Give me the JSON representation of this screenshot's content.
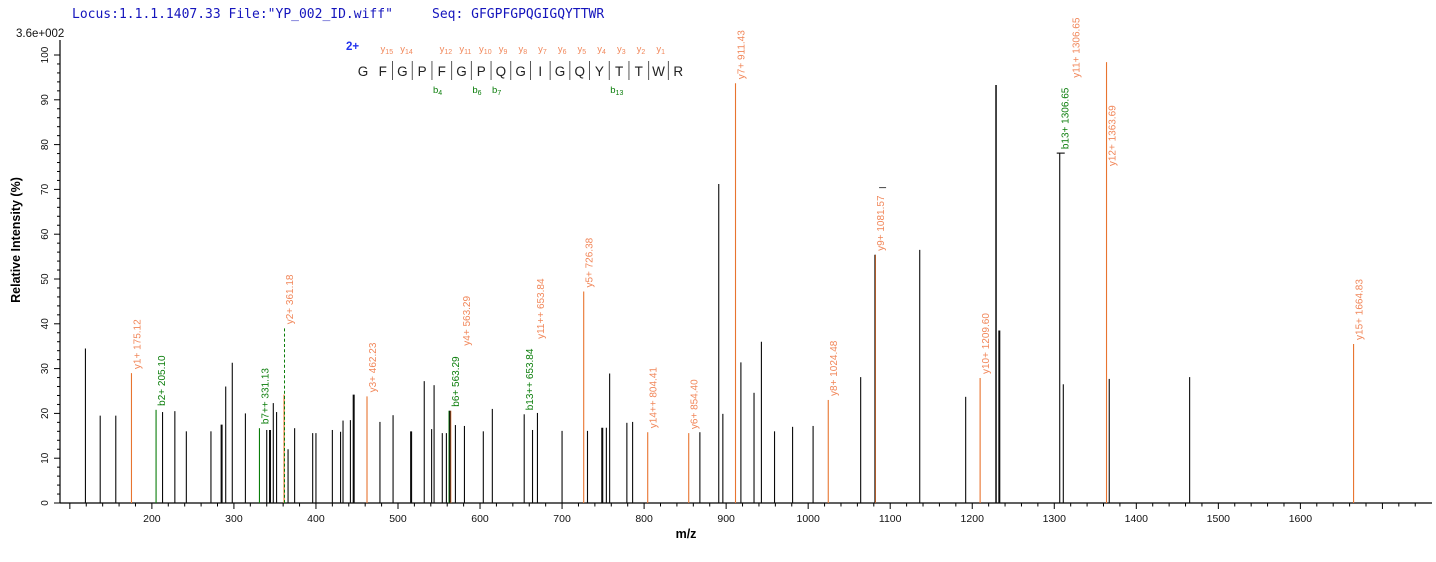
{
  "header": {
    "locus_file": "Locus:1.1.1.1407.33 File:\"YP_002_ID.wiff\"",
    "seq_label": "Seq: GFGPFGPQGIGQYTTWR",
    "max_intensity": "3.6e+002"
  },
  "colors": {
    "y_ion_line": "#e8742f",
    "y_ion_label": "#f1875a",
    "b_ion_line": "#0a7d0a",
    "b_ion_label": "#0a7d0a",
    "peak_black": "#0a0a0a",
    "header_blue": "#1515bd"
  },
  "chart_data": {
    "type": "bar",
    "subtype": "ms2-stick-spectrum",
    "title": "",
    "xlabel": "m/z",
    "ylabel": "Relative  Intensity (%)",
    "x_range": [
      88,
      1758
    ],
    "x_tick_labels": [
      200,
      300,
      400,
      500,
      600,
      700,
      800,
      900,
      1000,
      1100,
      1200,
      1300,
      1400,
      1500,
      1600
    ],
    "x_minor_step": 20,
    "y_range": [
      0,
      100
    ],
    "y_tick_labels": [
      0,
      10,
      20,
      30,
      40,
      50,
      60,
      70,
      80,
      90,
      100
    ],
    "y_minor_step": 2,
    "grid": false,
    "precursor_charge": "2+",
    "peptide": "GFGPFGPQGIGQYTTWR",
    "sequence": [
      "G",
      "F",
      "G",
      "P",
      "F",
      "G",
      "P",
      "Q",
      "G",
      "I",
      "G",
      "Q",
      "Y",
      "T",
      "T",
      "W",
      "R"
    ],
    "cleavages": [
      {
        "after": 2,
        "y": "15"
      },
      {
        "after": 3,
        "y": "14"
      },
      {
        "after": 4,
        "b": "4"
      },
      {
        "after": 5,
        "y": "12"
      },
      {
        "after": 6,
        "y": "11",
        "b": "6"
      },
      {
        "after": 7,
        "y": "10",
        "b": "7"
      },
      {
        "after": 8,
        "y": "9"
      },
      {
        "after": 9,
        "y": "8"
      },
      {
        "after": 10,
        "y": "7"
      },
      {
        "after": 11,
        "y": "6"
      },
      {
        "after": 12,
        "y": "5"
      },
      {
        "after": 13,
        "y": "4",
        "b": "13"
      },
      {
        "after": 14,
        "y": "3"
      },
      {
        "after": 15,
        "y": "2"
      },
      {
        "after": 16,
        "y": "1"
      }
    ],
    "peaks": [
      {
        "mz": 119,
        "i": 34.5
      },
      {
        "mz": 137,
        "i": 19.5
      },
      {
        "mz": 156,
        "i": 19.5
      },
      {
        "mz": 175.12,
        "i": 29.0,
        "c": "o",
        "labels": [
          {
            "t": "y1+ 175.12",
            "c": "o"
          }
        ]
      },
      {
        "mz": 205.1,
        "i": 20.8,
        "c": "g",
        "labels": [
          {
            "t": "b2+ 205.10",
            "c": "g"
          }
        ]
      },
      {
        "mz": 213,
        "i": 20.3
      },
      {
        "mz": 228,
        "i": 20.5
      },
      {
        "mz": 242,
        "i": 16.0
      },
      {
        "mz": 272,
        "i": 16.0
      },
      {
        "mz": 285,
        "i": 17.5,
        "w": 2
      },
      {
        "mz": 290,
        "i": 26.0
      },
      {
        "mz": 298,
        "i": 31.3
      },
      {
        "mz": 314,
        "i": 20.0
      },
      {
        "mz": 331.13,
        "i": 16.7,
        "c": "g",
        "labels": [
          {
            "t": "b7++ 331.13",
            "c": "g"
          }
        ]
      },
      {
        "mz": 340,
        "i": 16.3
      },
      {
        "mz": 344,
        "i": 16.3,
        "w": 2
      },
      {
        "mz": 348,
        "i": 22.3
      },
      {
        "mz": 352,
        "i": 20.3
      },
      {
        "mz": 361.18,
        "i": 39.0,
        "c": "yg",
        "labels": [
          {
            "t": "y2+ 361.18",
            "c": "o"
          }
        ]
      },
      {
        "mz": 366,
        "i": 12.0
      },
      {
        "mz": 374,
        "i": 16.7
      },
      {
        "mz": 396,
        "i": 15.6
      },
      {
        "mz": 400,
        "i": 15.6
      },
      {
        "mz": 420,
        "i": 16.3
      },
      {
        "mz": 430,
        "i": 15.9
      },
      {
        "mz": 433,
        "i": 18.4
      },
      {
        "mz": 442,
        "i": 18.5
      },
      {
        "mz": 446,
        "i": 24.2,
        "w": 2
      },
      {
        "mz": 462.23,
        "i": 23.8,
        "c": "o",
        "labels": [
          {
            "t": "y3+ 462.23",
            "c": "o"
          }
        ]
      },
      {
        "mz": 478,
        "i": 18.1
      },
      {
        "mz": 494,
        "i": 19.6
      },
      {
        "mz": 516,
        "i": 16.0,
        "w": 2
      },
      {
        "mz": 532,
        "i": 27.2
      },
      {
        "mz": 541,
        "i": 16.5
      },
      {
        "mz": 544,
        "i": 26.3
      },
      {
        "mz": 554,
        "i": 15.6
      },
      {
        "mz": 559,
        "i": 15.6
      },
      {
        "mz": 563.29,
        "i": 20.6,
        "c": "by",
        "w": 2.4,
        "labels": [
          {
            "t": "b6+ 563.29",
            "c": "g"
          },
          {
            "t": "y4+ 563.29",
            "c": "o"
          }
        ]
      },
      {
        "mz": 570,
        "i": 17.4
      },
      {
        "mz": 581,
        "i": 17.2
      },
      {
        "mz": 604,
        "i": 16.0
      },
      {
        "mz": 615,
        "i": 21.0
      },
      {
        "mz": 653.84,
        "i": 19.8,
        "labels": [
          {
            "t": "b13++ 653.84",
            "c": "g"
          },
          {
            "t": "y11++ 653.84",
            "c": "o"
          }
        ]
      },
      {
        "mz": 664,
        "i": 16.3
      },
      {
        "mz": 670,
        "i": 20.1
      },
      {
        "mz": 700,
        "i": 16.1
      },
      {
        "mz": 726.38,
        "i": 47.2,
        "c": "o",
        "labels": [
          {
            "t": "y5+ 726.38",
            "c": "o"
          }
        ]
      },
      {
        "mz": 731,
        "i": 16.1
      },
      {
        "mz": 749,
        "i": 16.8,
        "w": 2
      },
      {
        "mz": 754,
        "i": 16.8
      },
      {
        "mz": 758,
        "i": 28.9
      },
      {
        "mz": 779,
        "i": 17.9
      },
      {
        "mz": 786,
        "i": 18.1
      },
      {
        "mz": 804.41,
        "i": 15.8,
        "c": "o",
        "labels": [
          {
            "t": "y14++ 804.41",
            "c": "o"
          }
        ]
      },
      {
        "mz": 854.4,
        "i": 15.6,
        "c": "o",
        "labels": [
          {
            "t": "y6+ 854.40",
            "c": "o"
          }
        ]
      },
      {
        "mz": 868,
        "i": 15.8
      },
      {
        "mz": 891,
        "i": 71.2
      },
      {
        "mz": 896,
        "i": 19.9
      },
      {
        "mz": 911.43,
        "i": 93.7,
        "c": "o",
        "labels": [
          {
            "t": "y7+ 911.43",
            "c": "o"
          }
        ]
      },
      {
        "mz": 918,
        "i": 31.4
      },
      {
        "mz": 934,
        "i": 24.6
      },
      {
        "mz": 943,
        "i": 36.0
      },
      {
        "mz": 959,
        "i": 16.0
      },
      {
        "mz": 981,
        "i": 17.0
      },
      {
        "mz": 1006,
        "i": 17.2
      },
      {
        "mz": 1024.48,
        "i": 23.0,
        "c": "o",
        "labels": [
          {
            "t": "y8+ 1024.48",
            "c": "o"
          }
        ]
      },
      {
        "mz": 1064,
        "i": 28.1
      },
      {
        "mz": 1081.57,
        "i": 55.4,
        "c": "m",
        "labeldash": true,
        "labels": [
          {
            "t": "y9+ 1081.57",
            "c": "o"
          }
        ]
      },
      {
        "mz": 1136,
        "i": 56.5
      },
      {
        "mz": 1192,
        "i": 23.7
      },
      {
        "mz": 1209.6,
        "i": 27.9,
        "c": "o",
        "labels": [
          {
            "t": "y10+ 1209.60",
            "c": "o"
          }
        ]
      },
      {
        "mz": 1229,
        "i": 93.3,
        "w": 1.5
      },
      {
        "mz": 1233,
        "i": 38.5,
        "w": 2
      },
      {
        "mz": 1306.65,
        "i": 78.1,
        "topdash": true,
        "labels": [
          {
            "t": "b13+ 1306.65",
            "c": "g"
          },
          {
            "t": "y11+ 1306.65",
            "c": "o"
          }
        ]
      },
      {
        "mz": 1311,
        "i": 26.5
      },
      {
        "mz": 1363.69,
        "i": 98.4,
        "c": "o",
        "ldy": 104,
        "labels": [
          {
            "t": "y12+ 1363.69",
            "c": "o"
          }
        ]
      },
      {
        "mz": 1367,
        "i": 27.7
      },
      {
        "mz": 1465,
        "i": 28.1
      },
      {
        "mz": 1664.83,
        "i": 35.5,
        "c": "o",
        "labels": [
          {
            "t": "y15+ 1664.83",
            "c": "o"
          }
        ]
      }
    ]
  }
}
